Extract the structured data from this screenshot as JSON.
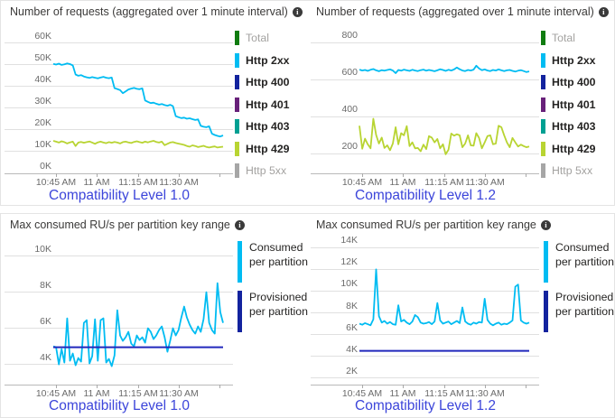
{
  "colors": {
    "accent_caption": "#3c45da",
    "http_2xx": "#00BCF2",
    "http_429": "#B8D432",
    "consumed": "#00BCF2",
    "provisioned_line": "#2128BC",
    "gridline": "#e0e0e0"
  },
  "chart_data": [
    {
      "id": "requests-compat-1-0",
      "type": "line",
      "title": "Number of requests (aggregated over 1 minute interval)",
      "caption": "Compatibility Level 1.0",
      "x": {
        "labels": [
          "10:45 AM",
          "11 AM",
          "11:15 AM",
          "11:30 AM"
        ],
        "interval": "1 minute",
        "range": [
          "10:44 AM",
          "11:45 AM"
        ]
      },
      "y": {
        "lim": [
          0,
          65.8
        ],
        "unit": "K requests",
        "ticks": [
          {
            "value": 0,
            "label": "0K"
          },
          {
            "value": 10,
            "label": "10K"
          },
          {
            "value": 20,
            "label": "20K"
          },
          {
            "value": 30,
            "label": "30K"
          },
          {
            "value": 40,
            "label": "40K"
          },
          {
            "value": 50,
            "label": "50K"
          },
          {
            "value": 60,
            "label": "60K"
          }
        ]
      },
      "legend": [
        {
          "label": "Total",
          "color": "#107C10",
          "dimmed": true
        },
        {
          "label": "Http 2xx",
          "color": "#00BCF2",
          "dimmed": false
        },
        {
          "label": "Http 400",
          "color": "#13239E",
          "dimmed": false
        },
        {
          "label": "Http 401",
          "color": "#68217A",
          "dimmed": false
        },
        {
          "label": "Http 403",
          "color": "#00A092",
          "dimmed": false
        },
        {
          "label": "Http 429",
          "color": "#B8D432",
          "dimmed": false
        },
        {
          "label": "Http 5xx",
          "color": "#A6A6A6",
          "dimmed": true
        }
      ],
      "series": [
        {
          "name": "Http 2xx",
          "color": "#00BCF2",
          "values": [
            50.5,
            50.2,
            50.6,
            50.0,
            50.3,
            50.7,
            50.4,
            49.8,
            45.6,
            45.0,
            45.3,
            44.7,
            44.3,
            44.0,
            44.4,
            44.1,
            43.8,
            44.2,
            44.5,
            44.1,
            43.9,
            44.2,
            39.3,
            38.9,
            38.4,
            37.0,
            37.8,
            38.7,
            39.1,
            39.4,
            39.0,
            38.8,
            39.2,
            33.6,
            33.0,
            32.4,
            32.6,
            32.1,
            31.7,
            32.0,
            31.5,
            31.2,
            31.6,
            31.0,
            26.4,
            25.9,
            25.5,
            25.7,
            25.2,
            25.4,
            25.0,
            24.6,
            24.9,
            21.9,
            21.5,
            21.3,
            21.7,
            18.3,
            17.7,
            17.3,
            17.0,
            17.5
          ]
        },
        {
          "name": "Http 429",
          "color": "#B8D432",
          "values": [
            15.0,
            14.6,
            14.2,
            14.8,
            14.4,
            13.8,
            14.3,
            14.6,
            12.6,
            14.2,
            14.5,
            14.1,
            14.4,
            14.7,
            14.2,
            13.6,
            14.3,
            14.6,
            14.2,
            13.9,
            14.4,
            14.1,
            14.5,
            14.2,
            13.8,
            14.4,
            14.6,
            14.3,
            14.0,
            14.5,
            14.8,
            14.4,
            14.1,
            14.6,
            14.3,
            14.7,
            15.0,
            14.5,
            14.2,
            14.6,
            13.0,
            13.6,
            14.2,
            14.4,
            14.0,
            13.7,
            13.4,
            13.1,
            12.6,
            12.3,
            12.9,
            12.6,
            12.1,
            12.4,
            12.7,
            12.2,
            11.9,
            12.2,
            12.4,
            11.9,
            12.1,
            12.3
          ]
        }
      ]
    },
    {
      "id": "requests-compat-1-2",
      "type": "line",
      "title": "Number of requests (aggregated over 1 minute interval)",
      "caption": "Compatibility Level 1.2",
      "x": {
        "labels": [
          "10:45 AM",
          "11 AM",
          "11:15 AM",
          "11:30 AM"
        ],
        "interval": "1 minute",
        "range": [
          "10:44 AM",
          "11:45 AM"
        ]
      },
      "y": {
        "lim": [
          95,
          865
        ],
        "unit": "requests",
        "ticks": [
          {
            "value": 200,
            "label": "200"
          },
          {
            "value": 400,
            "label": "400"
          },
          {
            "value": 600,
            "label": "600"
          },
          {
            "value": 800,
            "label": "800"
          }
        ]
      },
      "legend": [
        {
          "label": "Total",
          "color": "#107C10",
          "dimmed": true
        },
        {
          "label": "Http 2xx",
          "color": "#00BCF2",
          "dimmed": false
        },
        {
          "label": "Http 400",
          "color": "#13239E",
          "dimmed": false
        },
        {
          "label": "Http 401",
          "color": "#68217A",
          "dimmed": false
        },
        {
          "label": "Http 403",
          "color": "#00A092",
          "dimmed": false
        },
        {
          "label": "Http 429",
          "color": "#B8D432",
          "dimmed": false
        },
        {
          "label": "Http 5xx",
          "color": "#A6A6A6",
          "dimmed": true
        }
      ],
      "series": [
        {
          "name": "Http 2xx",
          "color": "#00BCF2",
          "values": [
            655,
            650,
            653,
            648,
            654,
            658,
            651,
            646,
            652,
            649,
            653,
            656,
            650,
            636,
            653,
            649,
            655,
            651,
            648,
            654,
            650,
            647,
            652,
            655,
            649,
            653,
            650,
            646,
            651,
            657,
            653,
            648,
            654,
            650,
            656,
            666,
            657,
            650,
            647,
            653,
            650,
            655,
            676,
            661,
            652,
            656,
            650,
            647,
            653,
            650,
            656,
            651,
            647,
            651,
            653,
            648,
            644,
            649,
            652,
            647,
            642,
            645
          ]
        },
        {
          "name": "Http 429",
          "color": "#B8D432",
          "values": [
            352,
            228,
            282,
            252,
            230,
            390,
            302,
            256,
            288,
            232,
            246,
            220,
            256,
            344,
            252,
            312,
            300,
            350,
            242,
            262,
            230,
            232,
            214,
            250,
            226,
            296,
            288,
            262,
            280,
            230,
            252,
            198,
            222,
            310,
            298,
            306,
            300,
            236,
            256,
            300,
            246,
            244,
            312,
            286,
            230,
            262,
            296,
            300,
            252,
            256,
            352,
            344,
            300,
            262,
            236,
            286,
            262,
            240,
            250,
            242,
            236,
            240
          ]
        }
      ]
    },
    {
      "id": "ru-compat-1-0",
      "type": "line",
      "title": "Max consumed RU/s per partition key range",
      "caption": "Compatibility Level 1.0",
      "x": {
        "labels": [
          "10:45 AM",
          "11 AM",
          "11:15 AM",
          "11:30 AM"
        ],
        "interval": "1 minute",
        "range": [
          "10:44 AM",
          "11:45 AM"
        ]
      },
      "y": {
        "lim": [
          2.88,
          10.98
        ],
        "unit": "K RU/s",
        "ticks": [
          {
            "value": 4,
            "label": "4K"
          },
          {
            "value": 6,
            "label": "6K"
          },
          {
            "value": 8,
            "label": "8K"
          },
          {
            "value": 10,
            "label": "10K"
          }
        ]
      },
      "legend": [
        {
          "label": "Consumed per partition",
          "color": "#00BCF2",
          "dimmed": false
        },
        {
          "label": "Provisioned per partition",
          "color": "#13239E",
          "dimmed": false
        }
      ],
      "series": [
        {
          "name": "Consumed per partition",
          "color": "#00BCF2",
          "values": [
            5.0,
            4.95,
            4.0,
            4.85,
            4.1,
            6.55,
            4.2,
            4.6,
            3.95,
            4.35,
            4.15,
            6.3,
            6.45,
            4.05,
            4.45,
            6.5,
            4.2,
            6.45,
            6.55,
            4.1,
            4.3,
            3.9,
            4.5,
            7.0,
            5.6,
            5.3,
            5.5,
            5.8,
            5.15,
            5.0,
            5.6,
            5.35,
            5.5,
            5.2,
            6.0,
            5.8,
            5.4,
            5.6,
            5.9,
            6.1,
            5.5,
            4.7,
            5.3,
            6.0,
            5.6,
            5.9,
            6.6,
            7.2,
            6.6,
            6.2,
            5.9,
            5.7,
            6.1,
            5.8,
            6.5,
            8.0,
            6.3,
            5.9,
            5.7,
            8.5,
            6.9,
            6.3
          ]
        },
        {
          "name": "Provisioned per partition",
          "color": "#2128BC",
          "constant": 4.95
        }
      ]
    },
    {
      "id": "ru-compat-1-2",
      "type": "line",
      "title": "Max consumed RU/s per partition key range",
      "caption": "Compatibility Level 1.2",
      "x": {
        "labels": [
          "10:45 AM",
          "11 AM",
          "11:15 AM",
          "11:30 AM"
        ],
        "interval": "1 minute",
        "range": [
          "10:44 AM",
          "11:45 AM"
        ]
      },
      "y": {
        "lim": [
          1.39,
          14.86
        ],
        "unit": "K RU/s",
        "ticks": [
          {
            "value": 2,
            "label": "2K"
          },
          {
            "value": 4,
            "label": "4K"
          },
          {
            "value": 6,
            "label": "6K"
          },
          {
            "value": 8,
            "label": "8K"
          },
          {
            "value": 10,
            "label": "10K"
          },
          {
            "value": 12,
            "label": "12K"
          },
          {
            "value": 14,
            "label": "14K"
          }
        ]
      },
      "legend": [
        {
          "label": "Consumed per partition",
          "color": "#00BCF2",
          "dimmed": false
        },
        {
          "label": "Provisioned per partition",
          "color": "#13239E",
          "dimmed": false
        }
      ],
      "series": [
        {
          "name": "Consumed per partition",
          "color": "#00BCF2",
          "values": [
            7.0,
            6.9,
            7.05,
            6.95,
            6.85,
            7.4,
            12.0,
            7.7,
            7.1,
            7.25,
            7.0,
            7.15,
            6.95,
            6.9,
            8.7,
            7.2,
            7.35,
            7.1,
            6.95,
            7.2,
            7.8,
            7.6,
            7.1,
            7.0,
            7.05,
            7.15,
            6.95,
            7.2,
            8.9,
            7.3,
            7.0,
            7.1,
            7.2,
            6.95,
            7.1,
            7.25,
            7.05,
            8.5,
            7.2,
            7.0,
            6.9,
            7.1,
            7.0,
            7.15,
            7.1,
            9.3,
            7.35,
            7.0,
            6.85,
            7.0,
            7.1,
            6.9,
            7.0,
            6.95,
            7.1,
            7.3,
            10.4,
            10.6,
            7.3,
            7.1,
            7.0,
            7.1
          ]
        },
        {
          "name": "Provisioned per partition",
          "color": "#2128BC",
          "constant": 4.5
        }
      ]
    }
  ]
}
